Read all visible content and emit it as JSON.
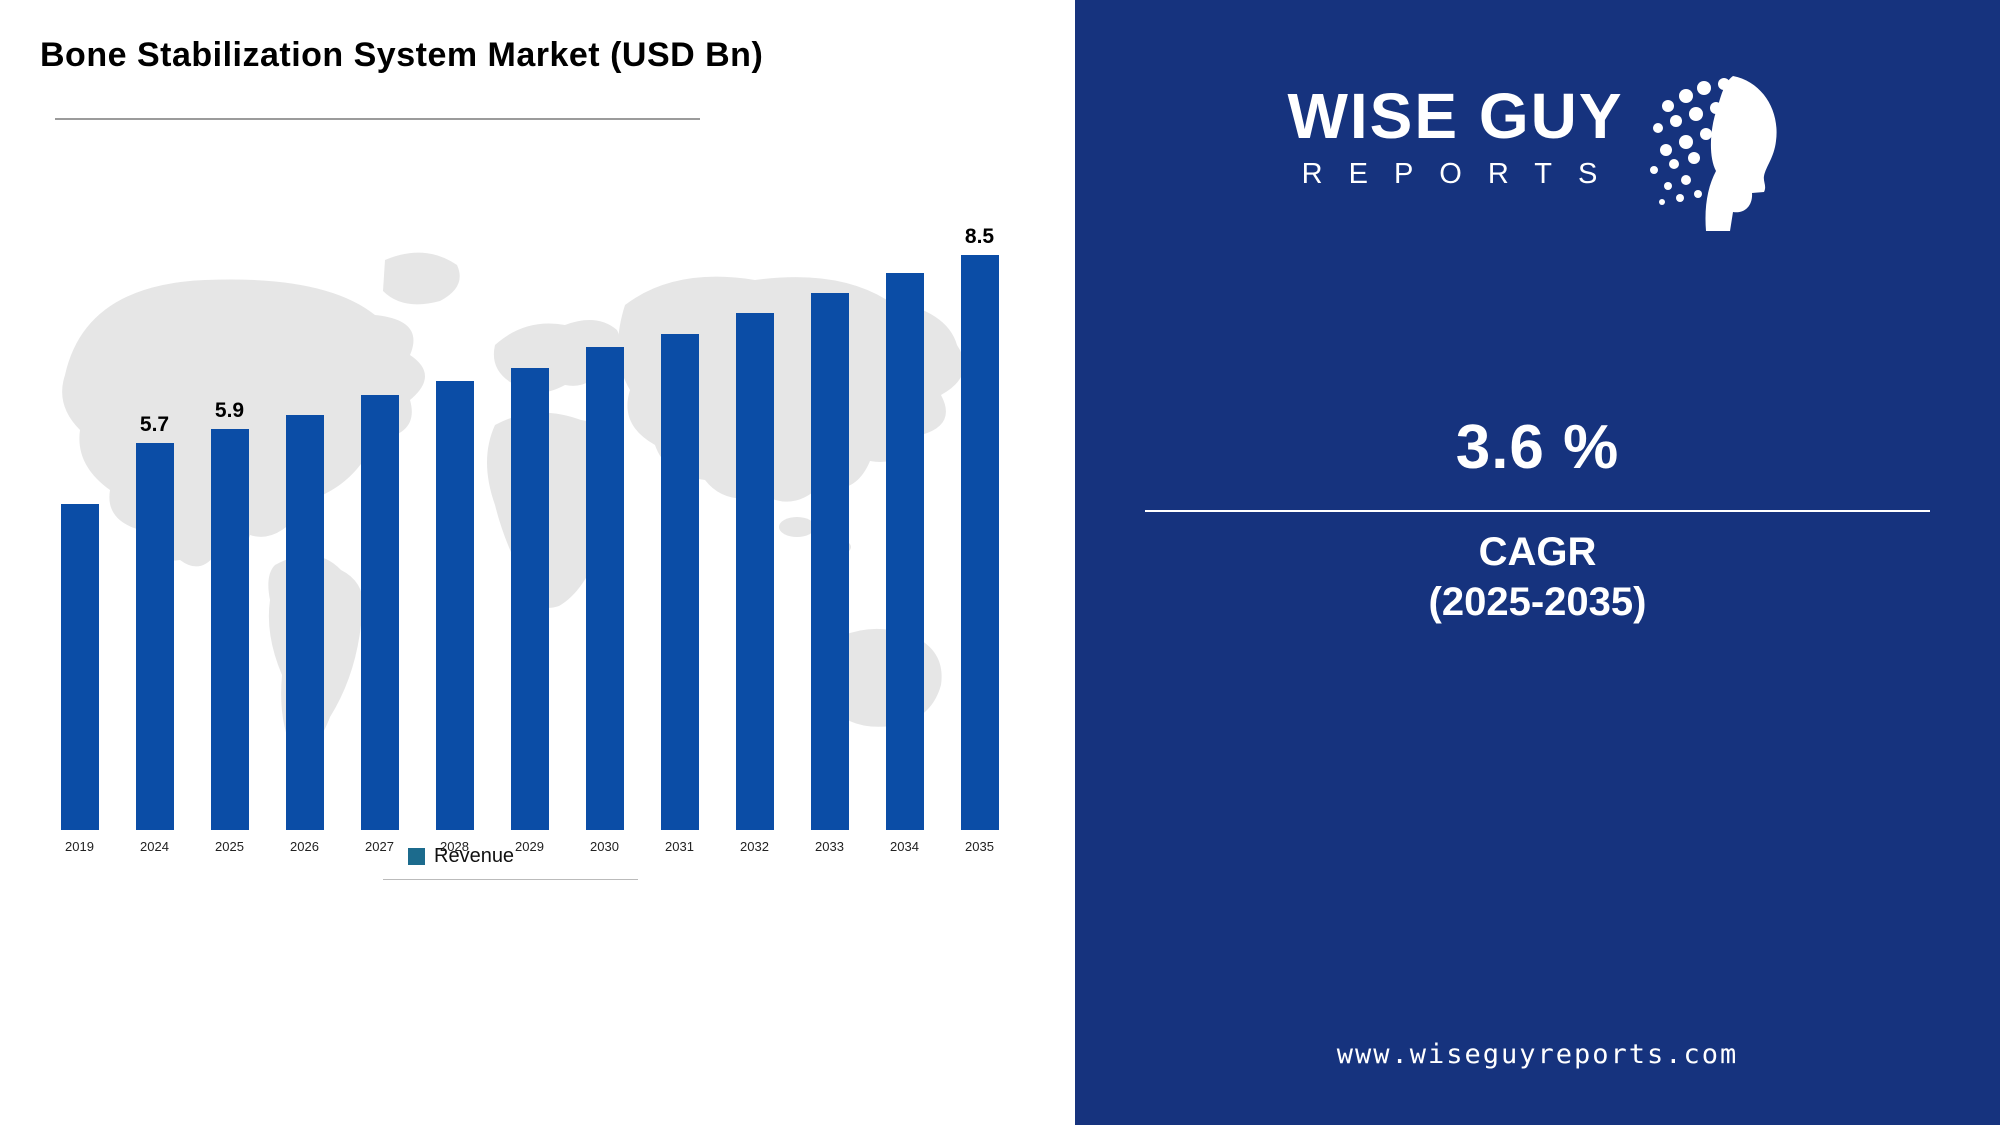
{
  "header": {
    "title": "Bone Stabilization System Market (USD Bn)"
  },
  "chart_data": {
    "type": "bar",
    "title": "Bone Stabilization System Market (USD Bn)",
    "categories": [
      "2019",
      "2024",
      "2025",
      "2026",
      "2027",
      "2028",
      "2029",
      "2030",
      "2031",
      "2032",
      "2033",
      "2034",
      "2035"
    ],
    "values": [
      4.8,
      5.7,
      5.9,
      6.1,
      6.4,
      6.6,
      6.8,
      7.1,
      7.3,
      7.6,
      7.9,
      8.2,
      8.5
    ],
    "point_labels": [
      "",
      "5.7",
      "5.9",
      "",
      "",
      "",
      "",
      "",
      "",
      "",
      "",
      "",
      "8.5"
    ],
    "xlabel": "",
    "ylabel": "",
    "ylim": [
      0,
      8.9
    ],
    "grid": false,
    "legend_position": "bottom",
    "series_name": "Revenue"
  },
  "legend": {
    "label": "Revenue"
  },
  "sidebar": {
    "brand_line1": "WISE GUY",
    "brand_line2": "REPORTS",
    "cagr_value": "3.6 %",
    "cagr_label": "CAGR",
    "cagr_period": "(2025-2035)",
    "website": "www.wiseguyreports.com"
  },
  "colors": {
    "panel_bg": "#16337e",
    "bar": "#0b4da6",
    "legend_marker": "#1c6b8d",
    "map": "#e6e6e6"
  }
}
